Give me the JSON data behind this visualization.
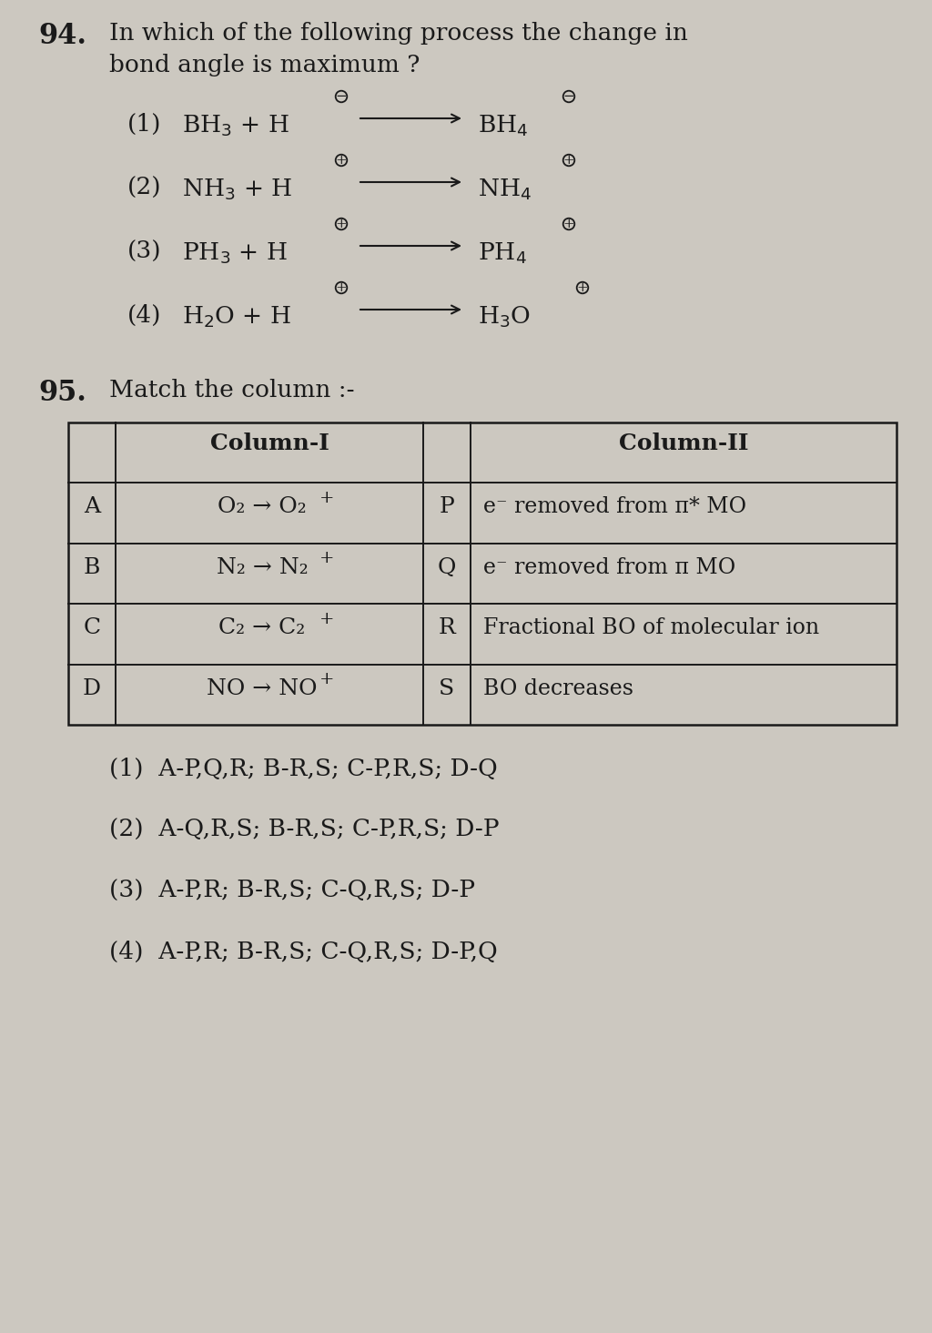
{
  "bg_color": "#ccc8c0",
  "text_color": "#1a1a1a",
  "q94_number": "94.",
  "q94_line1": "In which of the following process the change in",
  "q94_line2": "bond angle is maximum ?",
  "q95_number": "95.",
  "q95_label": "Match the column :-",
  "table_col1_header": "Column-I",
  "table_col2_header": "Column-II",
  "table_rows": [
    {
      "id": "A",
      "col1_text": "O₂ → O₂",
      "col1_sup": "+",
      "id2": "P",
      "col2": "e⁻ removed from π* MO"
    },
    {
      "id": "B",
      "col1_text": "N₂ → N₂",
      "col1_sup": "+",
      "id2": "Q",
      "col2": "e⁻ removed from π MO"
    },
    {
      "id": "C",
      "col1_text": "C₂ → C₂",
      "col1_sup": "+",
      "id2": "R",
      "col2": "Fractional BO of molecular ion"
    },
    {
      "id": "D",
      "col1_text": "NO → NO",
      "col1_sup": "+",
      "id2": "S",
      "col2": "BO decreases"
    }
  ],
  "q95_options": [
    "(1)  A-P,Q,R; B-R,S; C-P,R,S; D-Q",
    "(2)  A-Q,R,S; B-R,S; C-P,R,S; D-P",
    "(3)  A-P,R; B-R,S; C-Q,R,S; D-P",
    "(4)  A-P,R; B-R,S; C-Q,R,S; D-P,Q"
  ],
  "fs_big": 20,
  "fs_text": 19,
  "fs_opt": 19,
  "fs_tbl": 18,
  "fs_num": 22
}
